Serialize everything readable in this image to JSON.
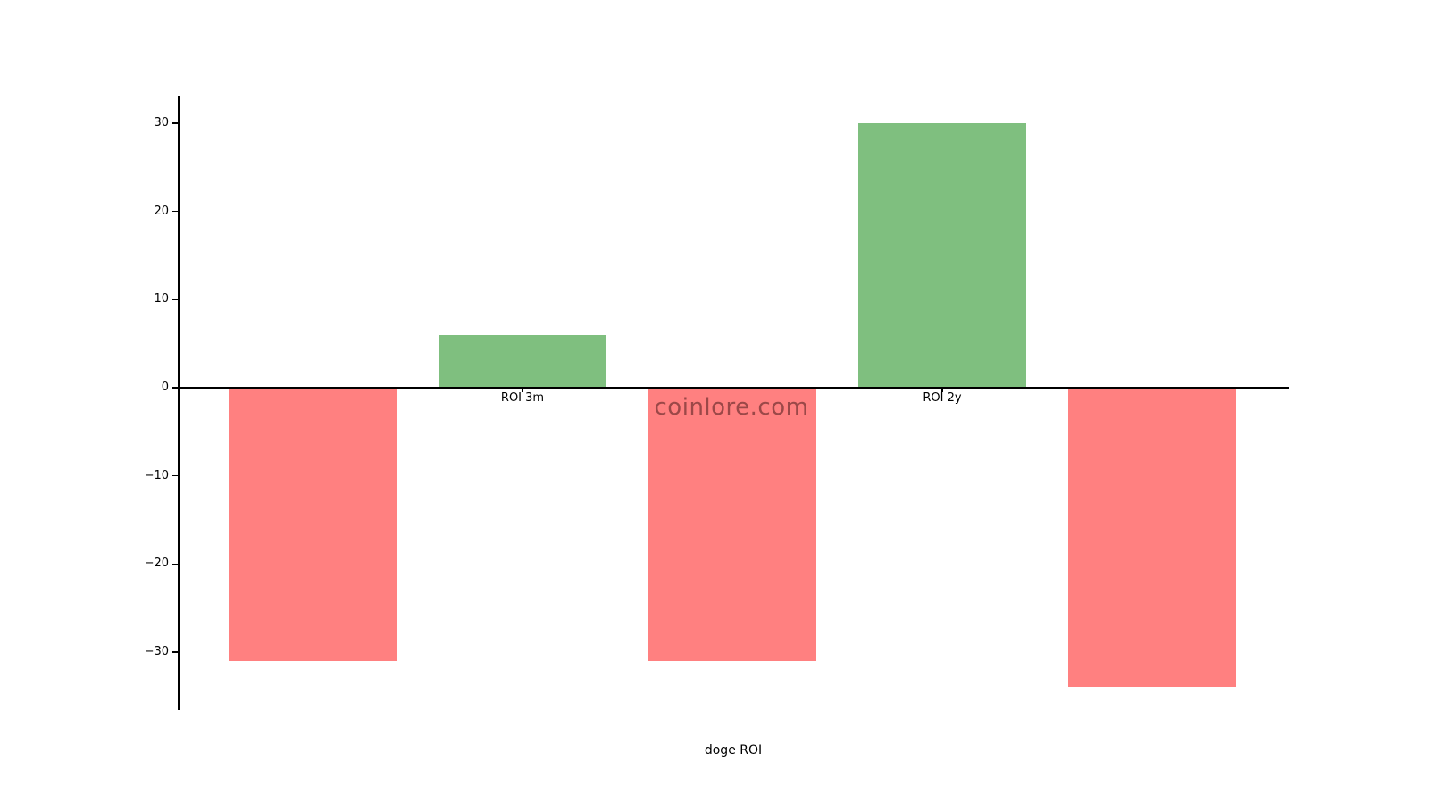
{
  "chart_data": {
    "type": "bar",
    "title": "",
    "xlabel": "doge ROI",
    "ylabel": "",
    "categories": [
      "",
      "ROI 3m",
      "",
      "ROI 2y",
      ""
    ],
    "values": [
      -31,
      6,
      -31,
      30,
      -34
    ],
    "bar_colors": [
      "#ff8080",
      "#7fbf7f",
      "#ff8080",
      "#7fbf7f",
      "#ff8080"
    ],
    "positive_color": "#7fbf7f",
    "negative_color": "#ff8080",
    "axis_color": "#000000",
    "y_tick_values": [
      30,
      20,
      10,
      0,
      -10,
      -20,
      -30
    ],
    "y_tick_labels": [
      "30",
      "20",
      "10",
      "0",
      "−10",
      "−20",
      "−30"
    ],
    "ylim": [
      -36.5,
      33
    ],
    "grid": false,
    "legend_position": "none"
  },
  "watermark": {
    "text": "coinlore.com",
    "color": "#9b4848"
  }
}
